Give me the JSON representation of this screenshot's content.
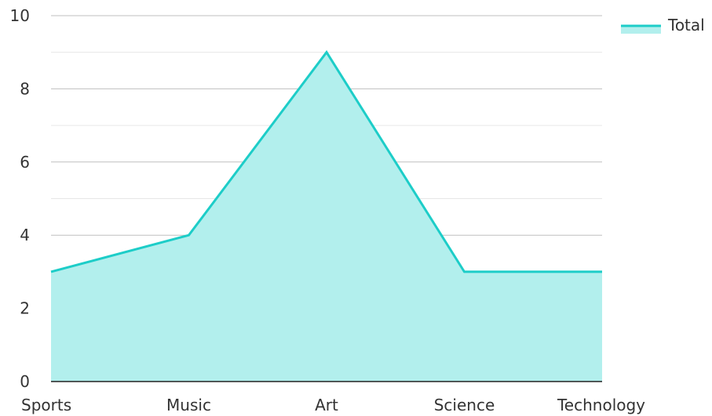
{
  "chart_data": {
    "type": "area",
    "categories": [
      "Sports",
      "Music",
      "Art",
      "Science",
      "Technology"
    ],
    "series": [
      {
        "name": "Total",
        "values": [
          3,
          4,
          9,
          3,
          3
        ]
      }
    ],
    "ylim": [
      0,
      10
    ],
    "yticks": [
      0,
      2,
      4,
      6,
      8,
      10
    ],
    "grid": true,
    "legend": "top-right",
    "colors": {
      "line": "#1dcdc8",
      "fill": "#b2efed",
      "grid_major": "#bfbfbf",
      "grid_minor": "#e6e6e6",
      "axis": "#222222",
      "text": "#333333"
    }
  }
}
